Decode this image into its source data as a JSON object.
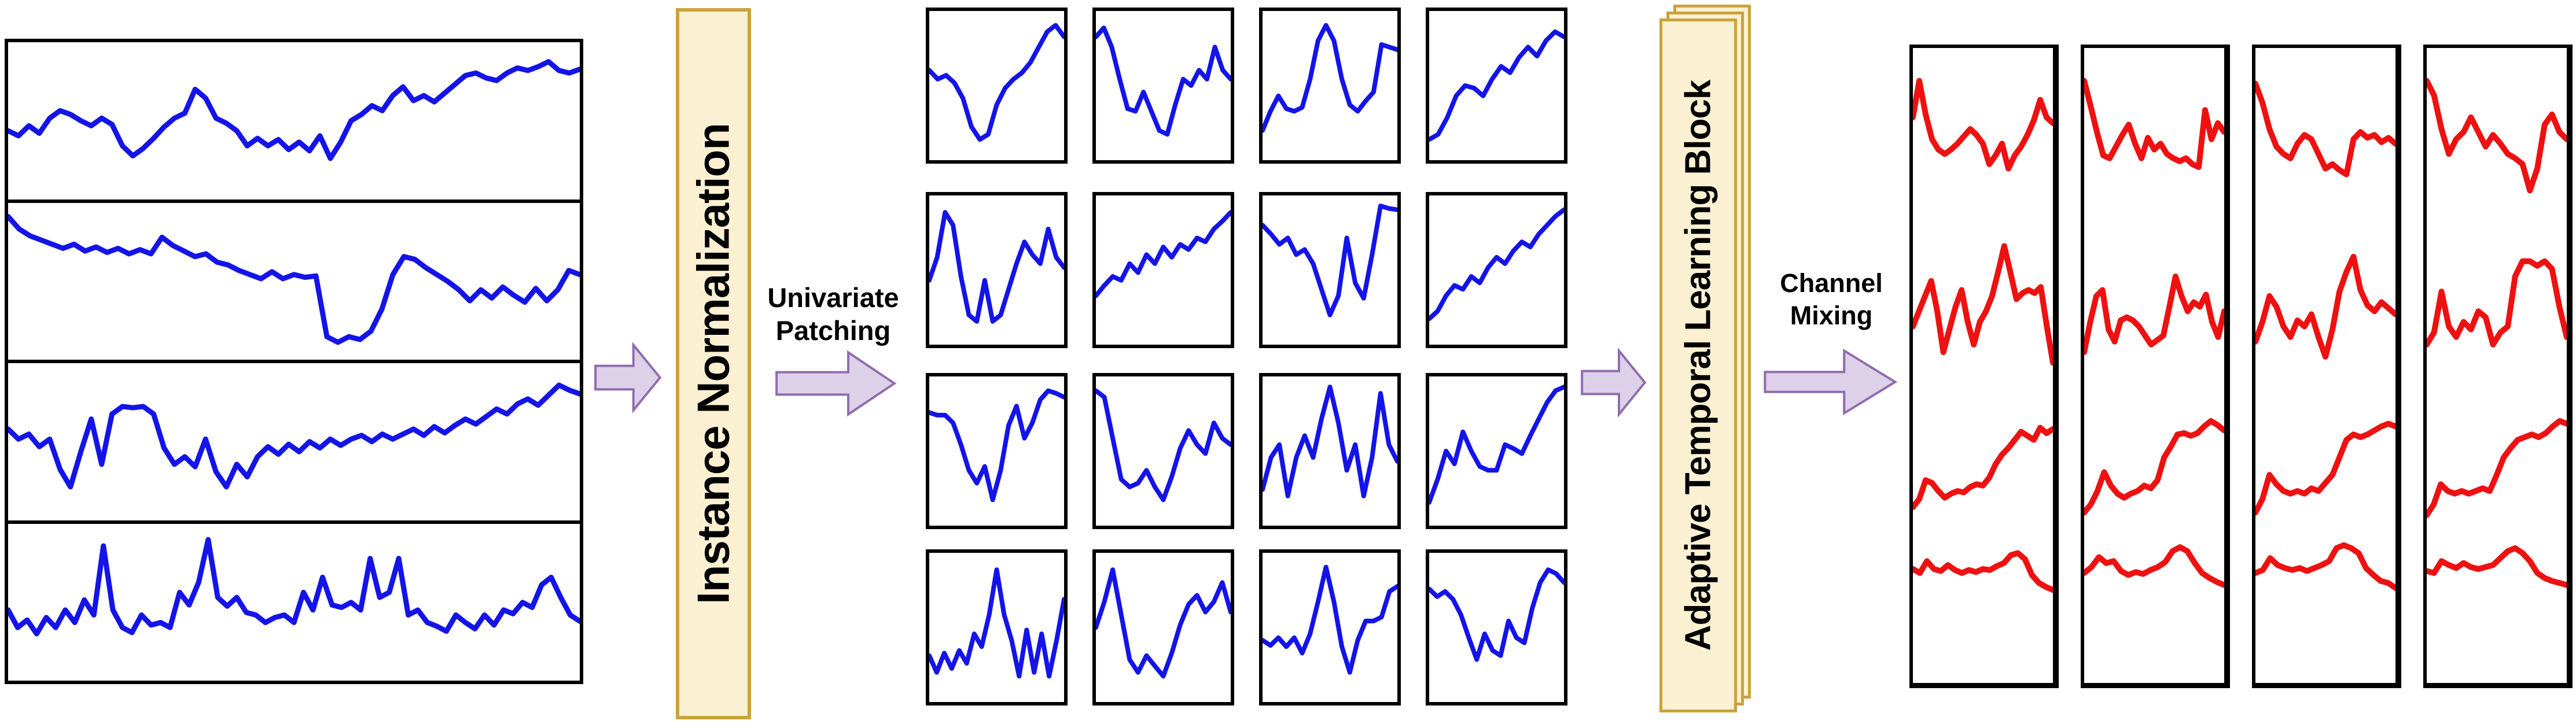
{
  "figure": {
    "kind": "time-series-model-pipeline-diagram",
    "description": "Multivariate series are instance-normalized, split into univariate patches, processed by stacked adaptive temporal learning blocks, then channel-mixed into output series"
  },
  "labels": {
    "instance_normalization": "Instance Normalization",
    "univariate_patching_line1": "Univariate",
    "univariate_patching_line2": "Patching",
    "adaptive_temporal_learning_block": "Adaptive Temporal Learning Block",
    "channel_mixing_line1": "Channel",
    "channel_mixing_line2": "Mixing"
  },
  "colors": {
    "blue_line": "#1414e8",
    "red_line": "#ee1111",
    "arrow_fill": "#ddd1e9",
    "arrow_border": "#8f6dad",
    "block_fill": "#fbf1d2",
    "block_border": "#cba23d",
    "panel_border": "#000000"
  },
  "chart_data": {
    "type": "line",
    "title": "",
    "xlabel": "",
    "ylabel": "",
    "grid": false,
    "legend": "none",
    "value_range": [
      0,
      1
    ],
    "input_series": [
      [
        0.42,
        0.38,
        0.46,
        0.4,
        0.52,
        0.58,
        0.55,
        0.5,
        0.46,
        0.52,
        0.47,
        0.3,
        0.22,
        0.28,
        0.36,
        0.45,
        0.52,
        0.56,
        0.75,
        0.68,
        0.52,
        0.48,
        0.42,
        0.3,
        0.36,
        0.3,
        0.35,
        0.27,
        0.33,
        0.26,
        0.38,
        0.2,
        0.33,
        0.5,
        0.55,
        0.62,
        0.58,
        0.7,
        0.77,
        0.66,
        0.7,
        0.65,
        0.72,
        0.79,
        0.86,
        0.88,
        0.84,
        0.82,
        0.88,
        0.92,
        0.9,
        0.93,
        0.97,
        0.9,
        0.88,
        0.91
      ],
      [
        0.97,
        0.88,
        0.83,
        0.8,
        0.77,
        0.74,
        0.77,
        0.72,
        0.75,
        0.71,
        0.74,
        0.7,
        0.73,
        0.7,
        0.82,
        0.76,
        0.72,
        0.68,
        0.7,
        0.64,
        0.62,
        0.58,
        0.55,
        0.52,
        0.57,
        0.52,
        0.55,
        0.53,
        0.54,
        0.1,
        0.06,
        0.1,
        0.08,
        0.14,
        0.3,
        0.55,
        0.68,
        0.66,
        0.6,
        0.55,
        0.5,
        0.44,
        0.36,
        0.44,
        0.38,
        0.46,
        0.4,
        0.35,
        0.45,
        0.36,
        0.44,
        0.58,
        0.55
      ],
      [
        0.6,
        0.52,
        0.56,
        0.46,
        0.52,
        0.28,
        0.14,
        0.42,
        0.68,
        0.32,
        0.72,
        0.78,
        0.77,
        0.78,
        0.72,
        0.45,
        0.32,
        0.38,
        0.3,
        0.52,
        0.26,
        0.14,
        0.32,
        0.22,
        0.38,
        0.46,
        0.4,
        0.48,
        0.42,
        0.5,
        0.45,
        0.52,
        0.47,
        0.52,
        0.55,
        0.5,
        0.56,
        0.52,
        0.56,
        0.6,
        0.55,
        0.62,
        0.57,
        0.63,
        0.68,
        0.64,
        0.7,
        0.76,
        0.72,
        0.8,
        0.84,
        0.79,
        0.87,
        0.95,
        0.91,
        0.88
      ],
      [
        0.44,
        0.3,
        0.36,
        0.25,
        0.38,
        0.3,
        0.44,
        0.34,
        0.52,
        0.4,
        0.95,
        0.44,
        0.3,
        0.26,
        0.4,
        0.32,
        0.34,
        0.3,
        0.58,
        0.48,
        0.66,
        1.0,
        0.54,
        0.47,
        0.54,
        0.42,
        0.4,
        0.34,
        0.38,
        0.4,
        0.34,
        0.58,
        0.44,
        0.7,
        0.48,
        0.46,
        0.5,
        0.44,
        0.85,
        0.54,
        0.58,
        0.85,
        0.4,
        0.44,
        0.34,
        0.31,
        0.27,
        0.4,
        0.34,
        0.29,
        0.4,
        0.32,
        0.44,
        0.41,
        0.5,
        0.46,
        0.64,
        0.7,
        0.54,
        0.4,
        0.35
      ]
    ],
    "patches": [
      [
        [
          0.62,
          0.55,
          0.58,
          0.52,
          0.4,
          0.18,
          0.08,
          0.12,
          0.35,
          0.48,
          0.55,
          0.6,
          0.68,
          0.8,
          0.92,
          0.97,
          0.88
        ],
        [
          0.88,
          0.95,
          0.8,
          0.55,
          0.32,
          0.3,
          0.45,
          0.3,
          0.15,
          0.12,
          0.35,
          0.55,
          0.5,
          0.62,
          0.55,
          0.8,
          0.62,
          0.55
        ],
        [
          0.15,
          0.3,
          0.42,
          0.32,
          0.3,
          0.33,
          0.55,
          0.85,
          0.97,
          0.85,
          0.55,
          0.35,
          0.3,
          0.38,
          0.45,
          0.82,
          0.8,
          0.78
        ],
        [
          0.08,
          0.12,
          0.25,
          0.42,
          0.5,
          0.48,
          0.42,
          0.55,
          0.65,
          0.6,
          0.72,
          0.8,
          0.73,
          0.85,
          0.92,
          0.88
        ]
      ],
      [
        [
          0.42,
          0.6,
          0.95,
          0.85,
          0.45,
          0.15,
          0.1,
          0.42,
          0.1,
          0.15,
          0.35,
          0.55,
          0.72,
          0.62,
          0.55,
          0.82,
          0.6,
          0.52
        ],
        [
          0.3,
          0.38,
          0.45,
          0.42,
          0.55,
          0.48,
          0.62,
          0.55,
          0.68,
          0.6,
          0.7,
          0.66,
          0.75,
          0.72,
          0.82,
          0.88,
          0.95
        ],
        [
          0.85,
          0.78,
          0.7,
          0.75,
          0.62,
          0.66,
          0.55,
          0.35,
          0.15,
          0.3,
          0.75,
          0.4,
          0.28,
          0.62,
          1.0,
          0.98,
          0.97
        ],
        [
          0.12,
          0.18,
          0.3,
          0.38,
          0.35,
          0.45,
          0.4,
          0.52,
          0.6,
          0.55,
          0.65,
          0.72,
          0.68,
          0.78,
          0.85,
          0.92,
          0.97
        ]
      ],
      [
        [
          0.8,
          0.78,
          0.78,
          0.72,
          0.55,
          0.35,
          0.25,
          0.38,
          0.12,
          0.35,
          0.7,
          0.85,
          0.6,
          0.72,
          0.9,
          0.97,
          0.95,
          0.92
        ],
        [
          0.97,
          0.92,
          0.6,
          0.28,
          0.22,
          0.25,
          0.35,
          0.22,
          0.12,
          0.3,
          0.52,
          0.66,
          0.55,
          0.48,
          0.72,
          0.6,
          0.55
        ],
        [
          0.2,
          0.45,
          0.55,
          0.15,
          0.45,
          0.62,
          0.45,
          0.75,
          1.0,
          0.72,
          0.35,
          0.55,
          0.15,
          0.45,
          0.95,
          0.55,
          0.42
        ],
        [
          0.1,
          0.28,
          0.5,
          0.4,
          0.65,
          0.5,
          0.38,
          0.35,
          0.35,
          0.55,
          0.52,
          0.48,
          0.62,
          0.75,
          0.88,
          0.97,
          1.0
        ]
      ],
      [
        [
          0.28,
          0.15,
          0.3,
          0.18,
          0.32,
          0.22,
          0.45,
          0.35,
          0.6,
          0.95,
          0.6,
          0.4,
          0.12,
          0.48,
          0.15,
          0.45,
          0.12,
          0.4,
          0.72
        ],
        [
          0.5,
          0.7,
          0.95,
          0.6,
          0.25,
          0.15,
          0.28,
          0.2,
          0.12,
          0.3,
          0.52,
          0.68,
          0.75,
          0.62,
          0.7,
          0.85,
          0.62
        ],
        [
          0.4,
          0.36,
          0.42,
          0.35,
          0.42,
          0.3,
          0.45,
          0.7,
          0.97,
          0.7,
          0.35,
          0.15,
          0.4,
          0.55,
          0.55,
          0.58,
          0.78,
          0.82
        ],
        [
          0.8,
          0.74,
          0.78,
          0.72,
          0.6,
          0.42,
          0.25,
          0.45,
          0.32,
          0.28,
          0.55,
          0.42,
          0.38,
          0.65,
          0.85,
          0.95,
          0.92,
          0.85
        ]
      ]
    ],
    "output_series": [
      [
        [
          0.7,
          0.95,
          0.72,
          0.55,
          0.48,
          0.45,
          0.48,
          0.52,
          0.57,
          0.62,
          0.58,
          0.52,
          0.38,
          0.44,
          0.52,
          0.35,
          0.44,
          0.5,
          0.58,
          0.68,
          0.82,
          0.7,
          0.66
        ],
        [
          0.42,
          0.52,
          0.62,
          0.72,
          0.52,
          0.25,
          0.4,
          0.55,
          0.66,
          0.45,
          0.3,
          0.45,
          0.52,
          0.62,
          0.78,
          0.95,
          0.78,
          0.6,
          0.64,
          0.66,
          0.64,
          0.68,
          0.42,
          0.18
        ],
        [
          0.18,
          0.24,
          0.38,
          0.36,
          0.3,
          0.25,
          0.28,
          0.3,
          0.29,
          0.33,
          0.35,
          0.34,
          0.4,
          0.5,
          0.57,
          0.62,
          0.68,
          0.74,
          0.71,
          0.68,
          0.77,
          0.73,
          0.76
        ],
        [
          0.34,
          0.3,
          0.42,
          0.34,
          0.32,
          0.38,
          0.33,
          0.3,
          0.33,
          0.31,
          0.34,
          0.33,
          0.37,
          0.4,
          0.48,
          0.5,
          0.44,
          0.28,
          0.2,
          0.16,
          0.13
        ]
      ],
      [
        [
          0.95,
          0.78,
          0.6,
          0.44,
          0.42,
          0.5,
          0.58,
          0.65,
          0.52,
          0.42,
          0.56,
          0.48,
          0.52,
          0.45,
          0.42,
          0.4,
          0.42,
          0.38,
          0.36,
          0.75,
          0.55,
          0.66,
          0.6
        ],
        [
          0.25,
          0.45,
          0.62,
          0.66,
          0.4,
          0.32,
          0.46,
          0.48,
          0.46,
          0.42,
          0.36,
          0.3,
          0.33,
          0.36,
          0.55,
          0.75,
          0.62,
          0.52,
          0.58,
          0.55,
          0.63,
          0.45,
          0.35,
          0.52
        ],
        [
          0.14,
          0.2,
          0.3,
          0.44,
          0.34,
          0.28,
          0.25,
          0.28,
          0.3,
          0.34,
          0.32,
          0.38,
          0.55,
          0.63,
          0.72,
          0.73,
          0.71,
          0.73,
          0.78,
          0.82,
          0.79,
          0.75
        ],
        [
          0.3,
          0.36,
          0.46,
          0.4,
          0.42,
          0.32,
          0.28,
          0.31,
          0.29,
          0.33,
          0.36,
          0.41,
          0.52,
          0.56,
          0.52,
          0.4,
          0.3,
          0.25,
          0.21,
          0.18
        ]
      ],
      [
        [
          0.93,
          0.8,
          0.62,
          0.5,
          0.45,
          0.42,
          0.52,
          0.58,
          0.55,
          0.45,
          0.35,
          0.38,
          0.34,
          0.31,
          0.55,
          0.6,
          0.56,
          0.58,
          0.53,
          0.56,
          0.52
        ],
        [
          0.32,
          0.45,
          0.62,
          0.55,
          0.42,
          0.35,
          0.46,
          0.42,
          0.5,
          0.35,
          0.22,
          0.4,
          0.65,
          0.78,
          0.88,
          0.66,
          0.56,
          0.52,
          0.58,
          0.54,
          0.5
        ],
        [
          0.14,
          0.24,
          0.42,
          0.35,
          0.3,
          0.28,
          0.3,
          0.28,
          0.32,
          0.3,
          0.36,
          0.42,
          0.55,
          0.68,
          0.72,
          0.7,
          0.72,
          0.75,
          0.78,
          0.8,
          0.78
        ],
        [
          0.3,
          0.33,
          0.45,
          0.38,
          0.35,
          0.33,
          0.35,
          0.32,
          0.35,
          0.38,
          0.42,
          0.55,
          0.58,
          0.55,
          0.5,
          0.35,
          0.28,
          0.22,
          0.2,
          0.15
        ]
      ],
      [
        [
          0.95,
          0.85,
          0.62,
          0.45,
          0.55,
          0.6,
          0.7,
          0.6,
          0.5,
          0.58,
          0.52,
          0.45,
          0.42,
          0.38,
          0.2,
          0.35,
          0.65,
          0.72,
          0.6,
          0.55
        ],
        [
          0.3,
          0.38,
          0.65,
          0.42,
          0.35,
          0.45,
          0.4,
          0.52,
          0.48,
          0.3,
          0.38,
          0.42,
          0.75,
          0.85,
          0.85,
          0.82,
          0.85,
          0.8,
          0.55,
          0.35
        ],
        [
          0.12,
          0.2,
          0.35,
          0.3,
          0.28,
          0.3,
          0.28,
          0.3,
          0.32,
          0.3,
          0.42,
          0.55,
          0.62,
          0.68,
          0.7,
          0.72,
          0.7,
          0.73,
          0.78,
          0.82,
          0.8
        ],
        [
          0.32,
          0.3,
          0.42,
          0.38,
          0.35,
          0.4,
          0.36,
          0.34,
          0.36,
          0.38,
          0.45,
          0.52,
          0.55,
          0.5,
          0.42,
          0.3,
          0.25,
          0.22,
          0.2,
          0.18
        ]
      ]
    ]
  }
}
